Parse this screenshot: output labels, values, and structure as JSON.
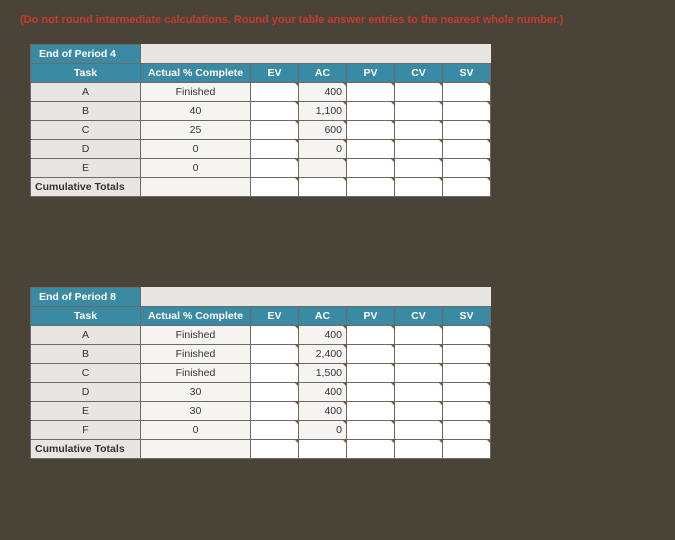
{
  "instruction": "(Do not round intermediate calculations. Round your table answer entries to the nearest whole number.)",
  "tables": [
    {
      "period_title": "End of Period 4",
      "columns": [
        "Task",
        "Actual % Complete",
        "EV",
        "AC",
        "PV",
        "CV",
        "SV"
      ],
      "rows": [
        {
          "task": "A",
          "complete": "Finished",
          "ac": "400"
        },
        {
          "task": "B",
          "complete": "40",
          "ac": "1,100"
        },
        {
          "task": "C",
          "complete": "25",
          "ac": "600"
        },
        {
          "task": "D",
          "complete": "0",
          "ac": "0"
        },
        {
          "task": "E",
          "complete": "0",
          "ac": ""
        }
      ],
      "footer": "Cumulative Totals"
    },
    {
      "period_title": "End of Period 8",
      "columns": [
        "Task",
        "Actual % Complete",
        "EV",
        "AC",
        "PV",
        "CV",
        "SV"
      ],
      "rows": [
        {
          "task": "A",
          "complete": "Finished",
          "ac": "400"
        },
        {
          "task": "B",
          "complete": "Finished",
          "ac": "2,400"
        },
        {
          "task": "C",
          "complete": "Finished",
          "ac": "1,500"
        },
        {
          "task": "D",
          "complete": "30",
          "ac": "400"
        },
        {
          "task": "E",
          "complete": "30",
          "ac": "400"
        },
        {
          "task": "F",
          "complete": "0",
          "ac": "0"
        }
      ],
      "footer": "Cumulative Totals"
    }
  ],
  "colors": {
    "header_bg": "#3a8aa3",
    "header_text": "#ffffff",
    "body_bg": "#4a4438",
    "cell_bg": "#e8e6e0",
    "input_bg": "#ffffff",
    "border": "#6a6a6a",
    "instruction": "#c83a2a"
  }
}
